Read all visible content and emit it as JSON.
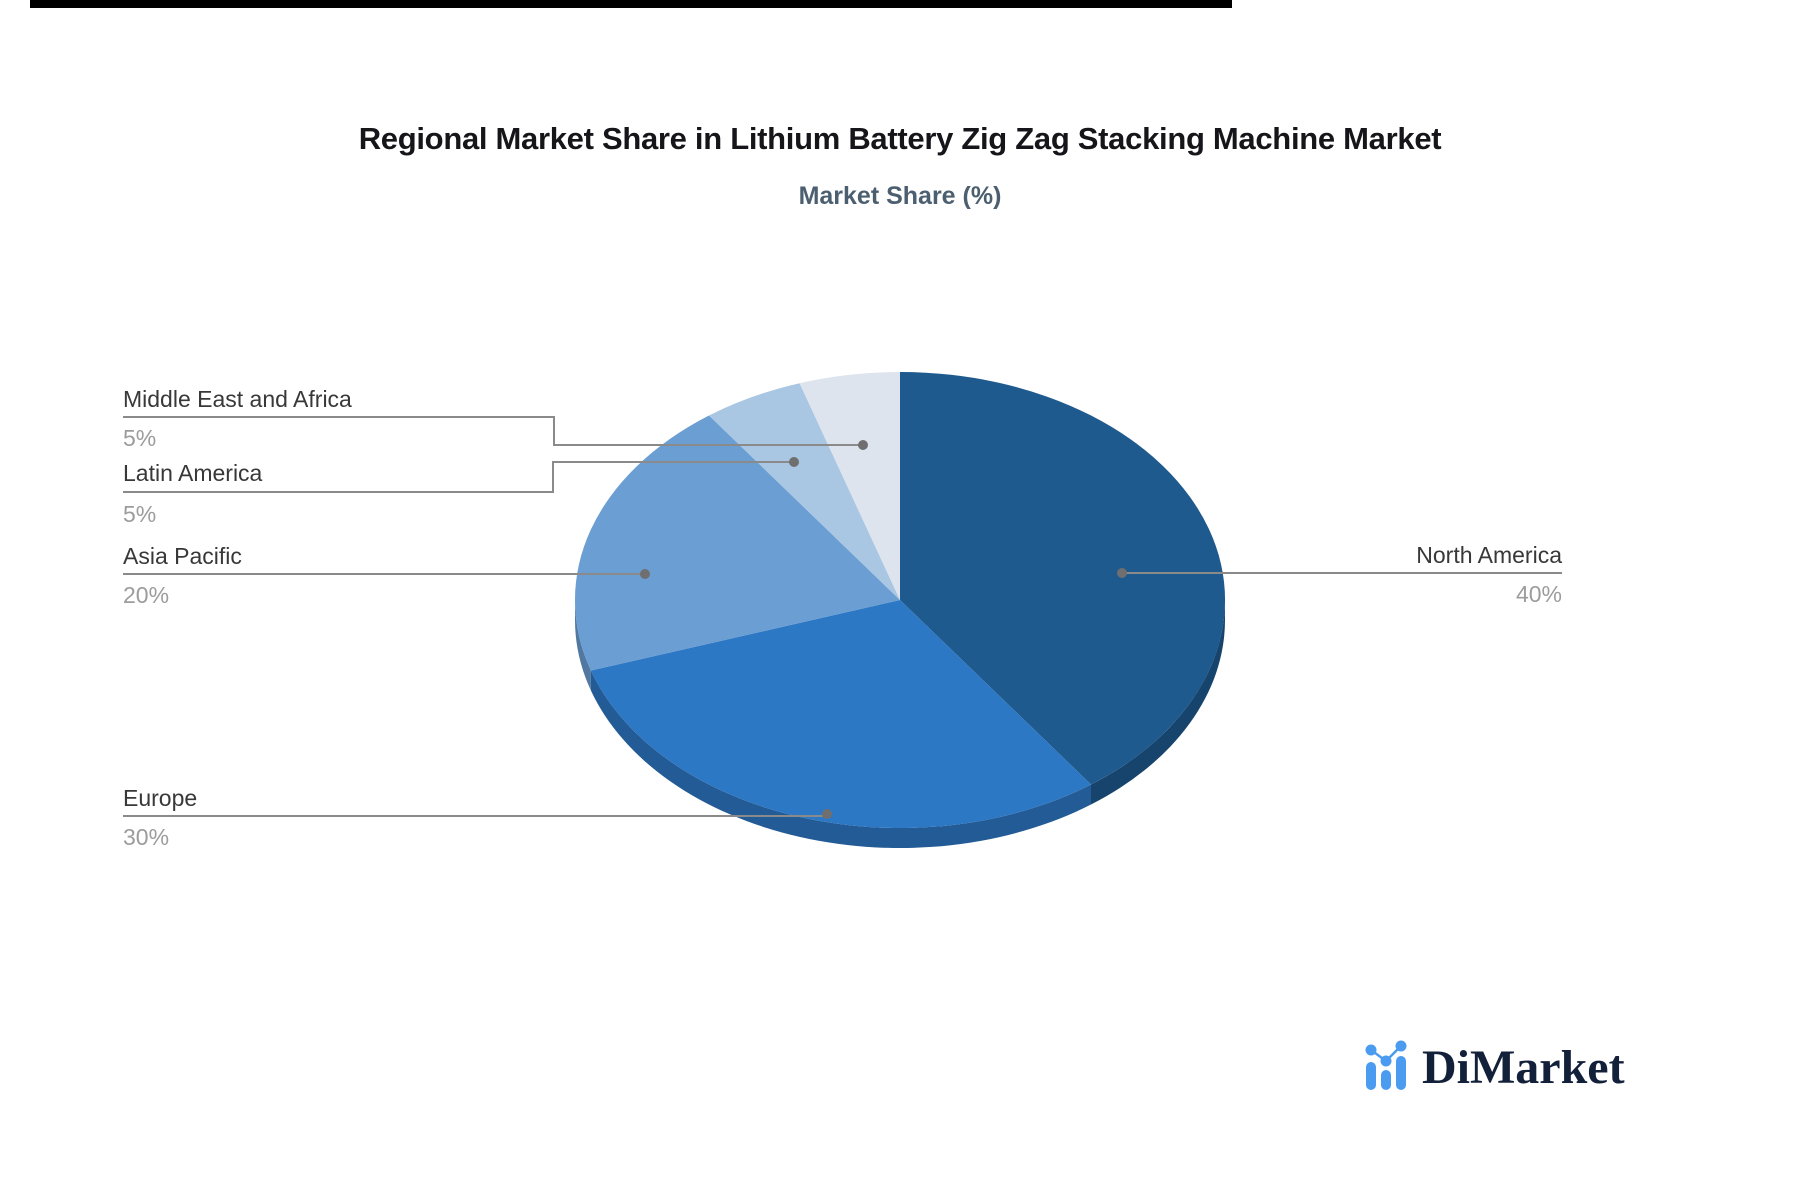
{
  "title": "Regional Market Share in Lithium Battery Zig Zag Stacking Machine Market",
  "subtitle": "Market Share (%)",
  "logo": {
    "text": "DiMarket",
    "icon_color": "#4b9cf1",
    "text_color": "#13203a"
  },
  "style": {
    "leader_line_color": "#8a8a8a",
    "leader_dot_color": "#6f6f6f",
    "label_text_color": "#383838",
    "value_text_color": "#9c9c9c",
    "title_color": "#15151a",
    "subtitle_color": "#4c5f70",
    "background": "#ffffff"
  },
  "chart_data": {
    "type": "pie",
    "title": "Regional Market Share in Lithium Battery Zig Zag Stacking Machine Market",
    "subtitle": "Market Share (%)",
    "unit": "%",
    "style_3d": true,
    "start_angle_deg": 0,
    "clockwise": true,
    "legend": "none",
    "slices": [
      {
        "label": "North America",
        "value": 40,
        "display": "40%",
        "color": "#1e5a8e"
      },
      {
        "label": "Europe",
        "value": 30,
        "display": "30%",
        "color": "#2d78c4"
      },
      {
        "label": "Asia Pacific",
        "value": 20,
        "display": "20%",
        "color": "#6b9ed3"
      },
      {
        "label": "Latin America",
        "value": 5,
        "display": "5%",
        "color": "#a9c6e3"
      },
      {
        "label": "Middle East and Africa",
        "value": 5,
        "display": "5%",
        "color": "#dde4ee"
      }
    ]
  }
}
